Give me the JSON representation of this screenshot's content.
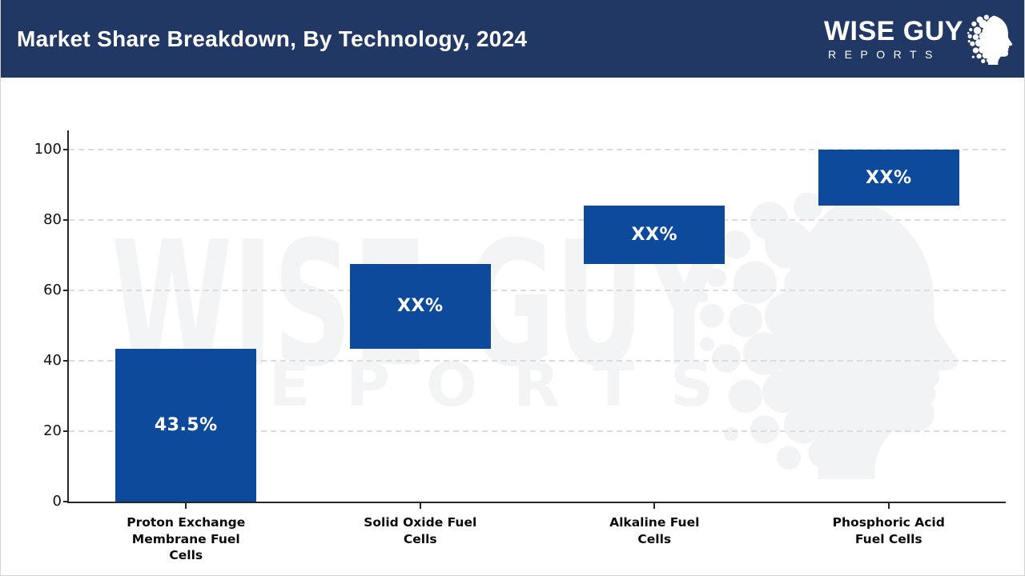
{
  "header": {
    "title": "Market Share Breakdown, By Technology, 2024",
    "logo": {
      "name": "WISE GUY",
      "subtitle": "REPORTS"
    }
  },
  "watermark": {
    "line1": "WISE GUY",
    "line2": "REPORTS"
  },
  "chart_data": {
    "type": "bar",
    "variant": "waterfall",
    "title": "Market Share Breakdown, By Technology, 2024",
    "categories": [
      "Proton Exchange\nMembrane Fuel\nCells",
      "Solid Oxide Fuel\nCells",
      "Alkaline Fuel\nCells",
      "Phosphoric Acid\nFuel Cells"
    ],
    "bars": [
      {
        "category": "Proton Exchange Membrane Fuel Cells",
        "label": "43.5%",
        "start": 0,
        "end": 43.5
      },
      {
        "category": "Solid Oxide Fuel Cells",
        "label": "XX%",
        "start": 43.5,
        "end": 67.6
      },
      {
        "category": "Alkaline Fuel Cells",
        "label": "XX%",
        "start": 67.6,
        "end": 84
      },
      {
        "category": "Phosphoric Acid Fuel Cells",
        "label": "XX%",
        "start": 84,
        "end": 100
      }
    ],
    "y_ticks": [
      0,
      20,
      40,
      60,
      80,
      100
    ],
    "ylim": [
      0,
      105
    ],
    "grid": "horizontal-dashed",
    "legend": "none",
    "colors": {
      "bar": "#0d4a9c",
      "bar_label": "#ffffff",
      "axis": "#262626",
      "grid": "#dcdcdc",
      "tick_label": "#111111",
      "header_bg": "#213864",
      "watermark": "#f3f4f6"
    }
  }
}
